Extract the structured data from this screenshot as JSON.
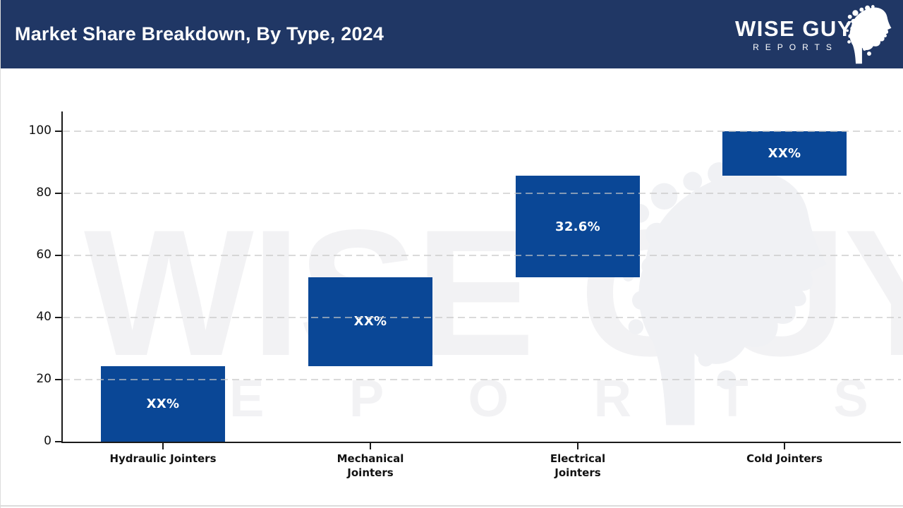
{
  "header": {
    "title": "Market Share Breakdown, By Type, 2024",
    "logo": {
      "line1": "WISE GUY",
      "line2": "REPORTS"
    }
  },
  "watermark": {
    "line1": "WISE GUY",
    "line2": "R E P O R T S"
  },
  "colors": {
    "header_bg": "#203765",
    "bar": "#0a4796",
    "bar_label": "#ffffff",
    "axis": "#1a1a1a",
    "grid": "#c6c6c6",
    "watermark": "#f2f2f4"
  },
  "chart_data": {
    "type": "bar",
    "subtype": "waterfall-floating-bars",
    "title": "Market Share Breakdown, By Type, 2024",
    "categories": [
      "Hydraulic Jointers",
      "Mechanical\nJointers",
      "Electrical\nJointers",
      "Cold Jointers"
    ],
    "segments": [
      {
        "category": "Hydraulic Jointers",
        "start": 0,
        "end": 24.3,
        "label": "XX%"
      },
      {
        "category": "Mechanical Jointers",
        "start": 24.3,
        "end": 53.0,
        "label": "XX%"
      },
      {
        "category": "Electrical Jointers",
        "start": 53.0,
        "end": 85.6,
        "label": "32.6%"
      },
      {
        "category": "Cold Jointers",
        "start": 85.6,
        "end": 100,
        "label": "XX%"
      }
    ],
    "yticks": [
      0,
      20,
      40,
      60,
      80,
      100
    ],
    "ylim": [
      0,
      107
    ],
    "xlabel": "",
    "ylabel": "",
    "grid": true,
    "grid_style": "dashed",
    "legend": false
  }
}
